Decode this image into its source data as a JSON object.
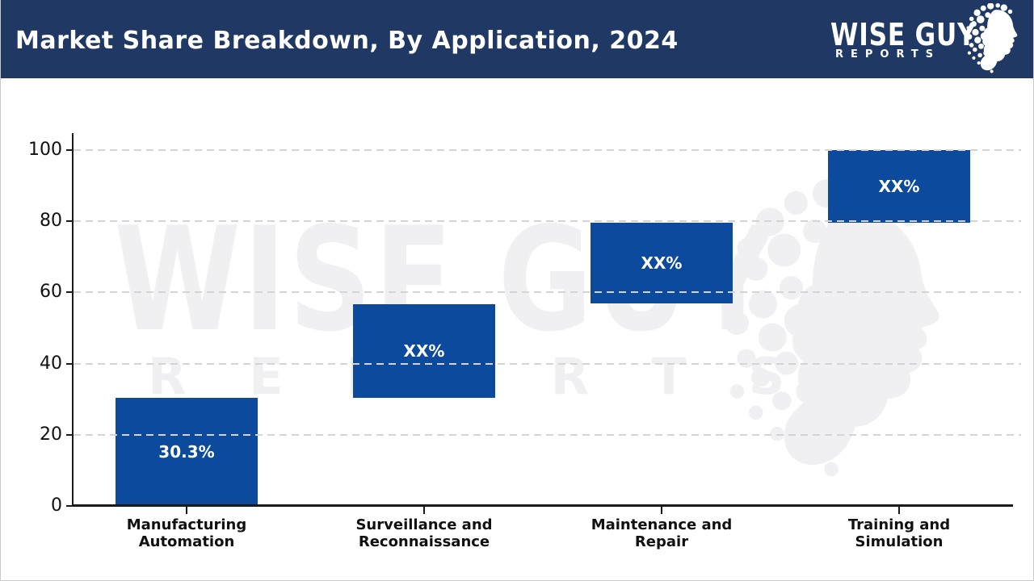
{
  "header": {
    "title": "Market Share Breakdown, By Application, 2024",
    "brand_line1": "WISE GUY",
    "brand_line2": "REPORTS"
  },
  "watermark": {
    "line1": "WISE GUY",
    "line2": "R E P O R T S"
  },
  "chart_data": {
    "type": "bar",
    "subtype": "waterfall",
    "title": "Market Share Breakdown, By Application, 2024",
    "xlabel": "",
    "ylabel": "",
    "ylim": [
      0,
      104
    ],
    "yticks": [
      0,
      20,
      40,
      60,
      80,
      100
    ],
    "grid": "horizontal dashed, drawn over bars",
    "legend": "none",
    "bar_color": "#0c4a9d",
    "bar_label_color": "#ffffff",
    "categories": [
      "Manufacturing Automation",
      "Surveillance and Reconnaissance",
      "Maintenance and Repair",
      "Training and Simulation"
    ],
    "category_label_lines": [
      [
        "Manufacturing",
        "Automation"
      ],
      [
        "Surveillance and",
        "Reconnaissance"
      ],
      [
        "Maintenance and",
        "Repair"
      ],
      [
        "Training and",
        "Simulation"
      ]
    ],
    "segments": [
      {
        "category": "Manufacturing Automation",
        "start": 0,
        "end": 30.3,
        "label": "30.3%"
      },
      {
        "category": "Surveillance and Reconnaissance",
        "start": 30.3,
        "end": 56.8,
        "label": "XX%"
      },
      {
        "category": "Maintenance and Repair",
        "start": 56.8,
        "end": 79.5,
        "label": "XX%"
      },
      {
        "category": "Training and Simulation",
        "start": 79.5,
        "end": 100,
        "label": "XX%"
      }
    ]
  },
  "colors": {
    "header_bg": "#1f3864",
    "bar": "#0c4a9d",
    "grid": "#d4d4d6",
    "axis": "#1a1a1a",
    "watermark": "#f0f0f3",
    "border": "#c9c9c9"
  }
}
